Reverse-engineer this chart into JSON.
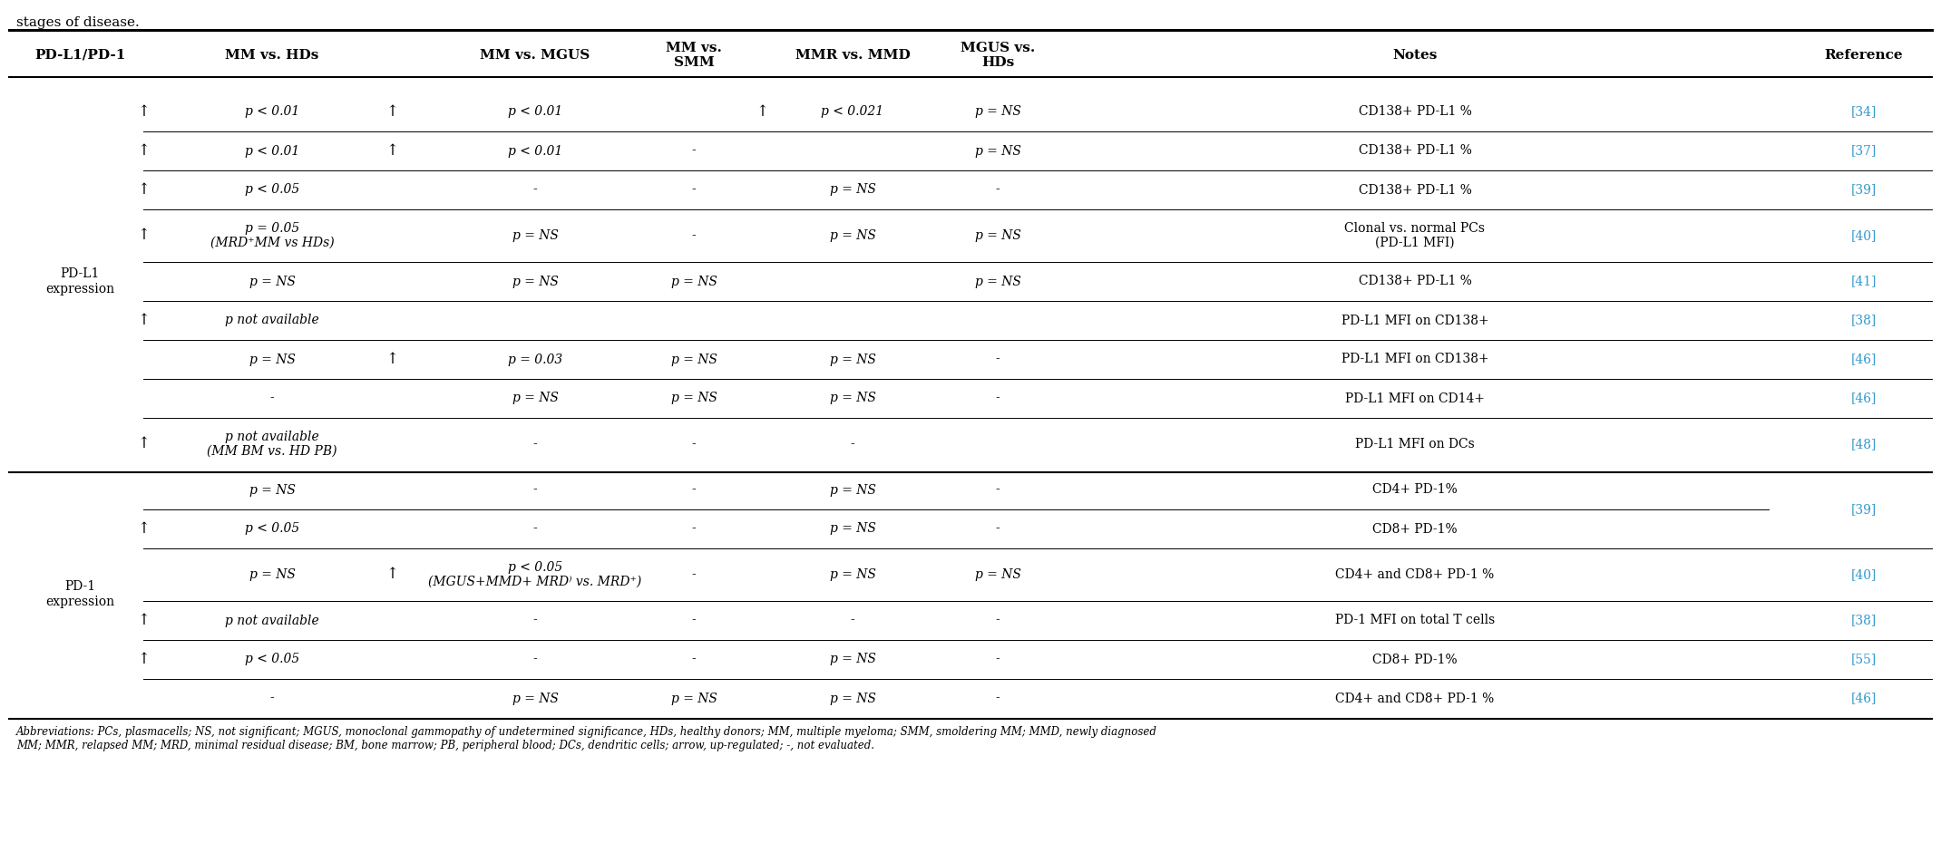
{
  "title_above": "stages of disease.",
  "footer": "Abbreviations: PCs, plasmacells; NS, not significant; MGUS, monoclonal gammopathy of undetermined significance, HDs, healthy donors; MM, multiple myeloma; SMM, smoldering MM; MMD, newly diagnosed\nMM; MMR, relapsed MM; MRD, minimal residual disease; BM, bone marrow; PB, peripheral blood; DCs, dendritic cells; arrow, up-regulated; -, not evaluated.",
  "ref_color": "#3399cc",
  "rows": [
    {
      "group": "PD-L1\nexpression",
      "arrow1": "↑",
      "mm_hds": "p < 0.01",
      "arrow2": "↑",
      "mm_mgus": "p < 0.01",
      "mm_smm": "",
      "arrow3": "↑",
      "mmr_mmd": "p < 0.021",
      "mgus_hds": "p = NS",
      "notes": "CD138+ PD-L1 %",
      "ref": "[34]"
    },
    {
      "group": "",
      "arrow1": "↑",
      "mm_hds": "p < 0.01",
      "arrow2": "↑",
      "mm_mgus": "p < 0.01",
      "mm_smm": "-",
      "arrow3": "",
      "mmr_mmd": "",
      "mgus_hds": "p = NS",
      "notes": "CD138+ PD-L1 %",
      "ref": "[37]"
    },
    {
      "group": "",
      "arrow1": "↑",
      "mm_hds": "p < 0.05",
      "arrow2": "",
      "mm_mgus": "-",
      "mm_smm": "-",
      "arrow3": "",
      "mmr_mmd": "p = NS",
      "mgus_hds": "-",
      "notes": "CD138+ PD-L1 %",
      "ref": "[39]"
    },
    {
      "group": "",
      "arrow1": "↑",
      "mm_hds": "p = 0.05\n(MRD⁺MM vs HDs)",
      "arrow2": "",
      "mm_mgus": "p = NS",
      "mm_smm": "-",
      "arrow3": "",
      "mmr_mmd": "p = NS",
      "mgus_hds": "p = NS",
      "notes": "Clonal vs. normal PCs\n(PD-L1 MFI)",
      "ref": "[40]",
      "tall": true
    },
    {
      "group": "",
      "arrow1": "",
      "mm_hds": "p = NS",
      "arrow2": "",
      "mm_mgus": "p = NS",
      "mm_smm": "p = NS",
      "arrow3": "",
      "mmr_mmd": "",
      "mgus_hds": "p = NS",
      "notes": "CD138+ PD-L1 %",
      "ref": "[41]"
    },
    {
      "group": "",
      "arrow1": "↑",
      "mm_hds": "p not available",
      "arrow2": "",
      "mm_mgus": "",
      "mm_smm": "",
      "arrow3": "",
      "mmr_mmd": "",
      "mgus_hds": "",
      "notes": "PD-L1 MFI on CD138+",
      "ref": "[38]"
    },
    {
      "group": "",
      "arrow1": "",
      "mm_hds": "p = NS",
      "arrow2": "↑",
      "mm_mgus": "p = 0.03",
      "mm_smm": "p = NS",
      "arrow3": "",
      "mmr_mmd": "p = NS",
      "mgus_hds": "-",
      "notes": "PD-L1 MFI on CD138+",
      "ref": "[46]"
    },
    {
      "group": "",
      "arrow1": "",
      "mm_hds": "-",
      "arrow2": "",
      "mm_mgus": "p = NS",
      "mm_smm": "p = NS",
      "arrow3": "",
      "mmr_mmd": "p = NS",
      "mgus_hds": "-",
      "notes": "PD-L1 MFI on CD14+",
      "ref": "[46]"
    },
    {
      "group": "",
      "arrow1": "↑",
      "mm_hds": "p not available\n(MM BM vs. HD PB)",
      "arrow2": "",
      "mm_mgus": "-",
      "mm_smm": "-",
      "arrow3": "",
      "mmr_mmd": "-",
      "mgus_hds": "",
      "notes": "PD-L1 MFI on DCs",
      "ref": "[48]",
      "tall": true,
      "section_end": true
    },
    {
      "group": "PD-1\nexpression",
      "arrow1": "",
      "mm_hds": "p = NS",
      "arrow2": "",
      "mm_mgus": "-",
      "mm_smm": "-",
      "arrow3": "",
      "mmr_mmd": "p = NS",
      "mgus_hds": "-",
      "notes": "CD4+ PD-1%",
      "ref": "[39]",
      "shared_ref_top": true
    },
    {
      "group": "",
      "arrow1": "↑",
      "mm_hds": "p < 0.05",
      "arrow2": "",
      "mm_mgus": "-",
      "mm_smm": "-",
      "arrow3": "",
      "mmr_mmd": "p = NS",
      "mgus_hds": "-",
      "notes": "CD8+ PD-1%",
      "ref": "[39]",
      "shared_ref_bot": true
    },
    {
      "group": "",
      "arrow1": "",
      "mm_hds": "p = NS",
      "arrow2": "↑",
      "mm_mgus": "p < 0.05\n(MGUS+MMD+ MRD⁾ vs. MRD⁺)",
      "mm_smm": "-",
      "arrow3": "",
      "mmr_mmd": "p = NS",
      "mgus_hds": "p = NS",
      "notes": "CD4+ and CD8+ PD-1 %",
      "ref": "[40]",
      "tall": true
    },
    {
      "group": "",
      "arrow1": "↑",
      "mm_hds": "p not available",
      "arrow2": "",
      "mm_mgus": "-",
      "mm_smm": "-",
      "arrow3": "",
      "mmr_mmd": "-",
      "mgus_hds": "-",
      "notes": "PD-1 MFI on total T cells",
      "ref": "[38]"
    },
    {
      "group": "",
      "arrow1": "↑",
      "mm_hds": "p < 0.05",
      "arrow2": "",
      "mm_mgus": "-",
      "mm_smm": "-",
      "arrow3": "",
      "mmr_mmd": "p = NS",
      "mgus_hds": "-",
      "notes": "CD8+ PD-1%",
      "ref": "[55]"
    },
    {
      "group": "",
      "arrow1": "",
      "mm_hds": "-",
      "arrow2": "",
      "mm_mgus": "p = NS",
      "mm_smm": "p = NS",
      "arrow3": "",
      "mmr_mmd": "p = NS",
      "mgus_hds": "-",
      "notes": "CD4+ and CD8+ PD-1 %",
      "ref": "[46]"
    }
  ]
}
